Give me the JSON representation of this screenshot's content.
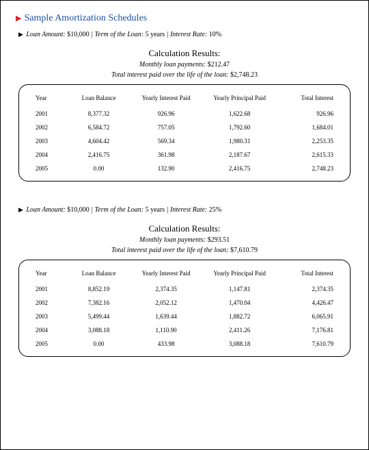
{
  "title": "Sample Amortization Schedules",
  "schedules": [
    {
      "params": {
        "loan_amount_label": "Loan Amount:",
        "loan_amount": "$10,000",
        "term_label": "Term of the Loan:",
        "term": "5 years",
        "rate_label": "Interest Rate:",
        "rate": "10%"
      },
      "results_title": "Calculation Results:",
      "monthly_label": "Monthly loan payments:",
      "monthly_value": "$212.47",
      "total_interest_label": "Total interest paid over the life of the loan:",
      "total_interest_value": "$2,748.23",
      "columns": [
        "Year",
        "Loan Balance",
        "Yearly Interest Paid",
        "Yearly Principal Paid",
        "Total Interest"
      ],
      "rows": [
        [
          "2001",
          "8,377.32",
          "926.96",
          "1,622.68",
          "926.96"
        ],
        [
          "2002",
          "6,584.72",
          "757.05",
          "1,792.60",
          "1,684.01"
        ],
        [
          "2003",
          "4,604.42",
          "569.34",
          "1,980.31",
          "2,253.35"
        ],
        [
          "2004",
          "2,416.75",
          "361.98",
          "2,187.67",
          "2,615.33"
        ],
        [
          "2005",
          "0.00",
          "132.90",
          "2,416.75",
          "2,748.23"
        ]
      ]
    },
    {
      "params": {
        "loan_amount_label": "Loan Amount:",
        "loan_amount": "$10,000",
        "term_label": "Term of the Loan:",
        "term": "5 years",
        "rate_label": "Interest Rate:",
        "rate": "25%"
      },
      "results_title": "Calculation Results:",
      "monthly_label": "Monthly loan payments:",
      "monthly_value": "$293.51",
      "total_interest_label": "Total interest paid over the life of the loan:",
      "total_interest_value": "$7,610.79",
      "columns": [
        "Year",
        "Loan Balance",
        "Yearly Interest Paid",
        "Yearly Principal Paid",
        "Total Interest"
      ],
      "rows": [
        [
          "2001",
          "8,852.19",
          "2,374.35",
          "1,147.81",
          "2,374.35"
        ],
        [
          "2002",
          "7,382.16",
          "2,052.12",
          "1,470.04",
          "4,426.47"
        ],
        [
          "2003",
          "5,499.44",
          "1,639.44",
          "1,882.72",
          "6,065.91"
        ],
        [
          "2004",
          "3,088.18",
          "1,110.90",
          "2,411.26",
          "7,176.81"
        ],
        [
          "2005",
          "0.00",
          "433.98",
          "3,088.18",
          "7,610.79"
        ]
      ]
    }
  ],
  "colors": {
    "title": "#1a4fa3",
    "arrow": "#d8232a",
    "border": "#000000",
    "text": "#000000",
    "background": "#ffffff"
  }
}
